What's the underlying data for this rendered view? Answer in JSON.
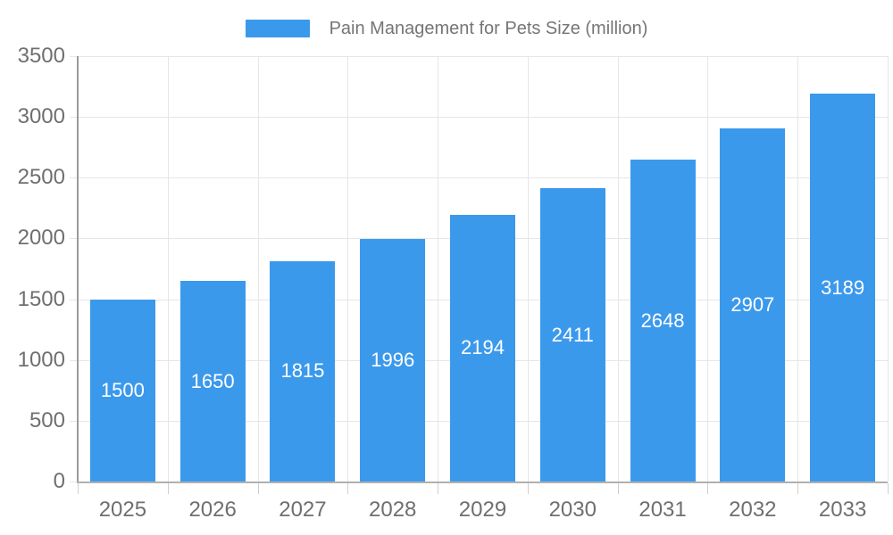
{
  "legend": {
    "label": "Pain Management for Pets Size (million)"
  },
  "colors": {
    "background": "#FFFFFF",
    "bar": "#3B99EC",
    "grid": "#E6E6E6",
    "tick": "#CFCFCF",
    "axis_y_line": "#9A9A9A",
    "axis_x_line": "#B0B0B0",
    "axis_text": "#6F6F6F",
    "legend_text": "#757575",
    "bar_label_text": "#FFFFFF"
  },
  "chart_data": {
    "type": "bar",
    "title": "Pain Management for Pets Size (million)",
    "categories": [
      "2025",
      "2026",
      "2027",
      "2028",
      "2029",
      "2030",
      "2031",
      "2032",
      "2033"
    ],
    "values": [
      1500,
      1650,
      1815,
      1996,
      2194,
      2411,
      2648,
      2907,
      3189
    ],
    "xlabel": "",
    "ylabel": "",
    "ylim": [
      0,
      3500
    ],
    "yticks": [
      0,
      500,
      1000,
      1500,
      2000,
      2500,
      3000,
      3500
    ],
    "grid": true,
    "legend_position": "top-center",
    "value_labels": "inside-center-white"
  }
}
